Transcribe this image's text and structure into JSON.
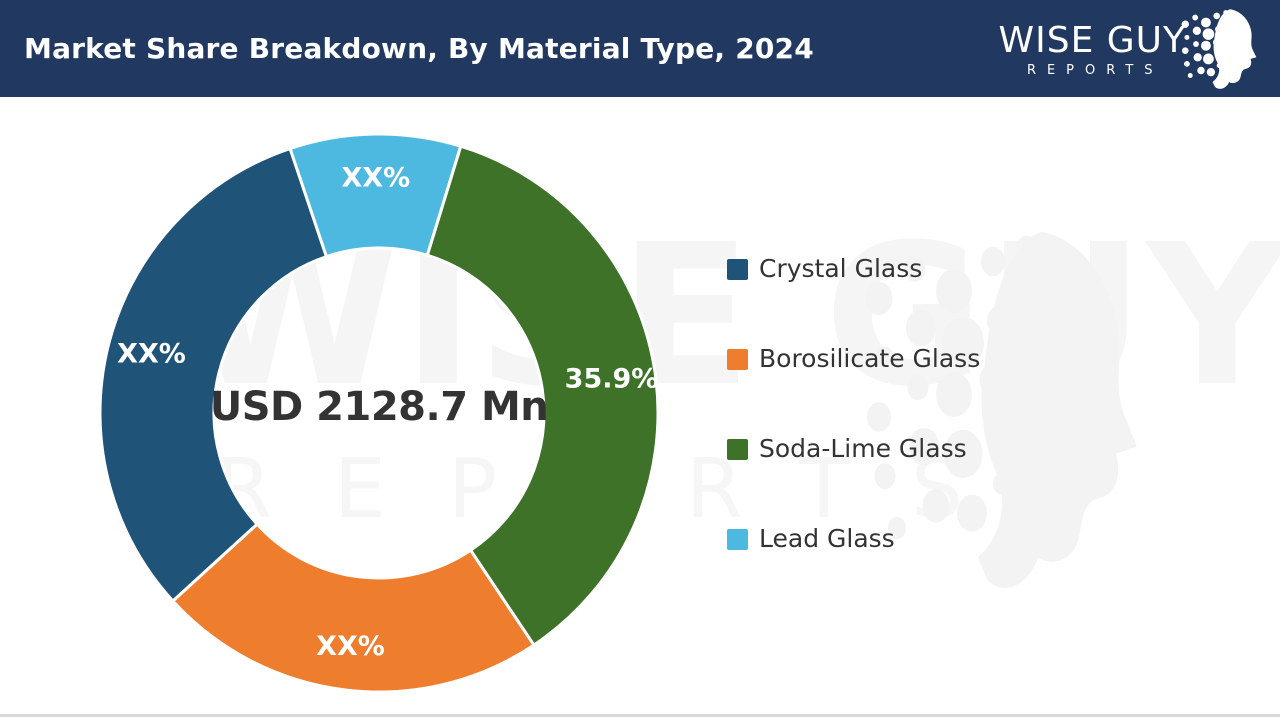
{
  "header": {
    "title": "Market Share Breakdown, By Material Type, 2024",
    "bg_color": "#213861",
    "logo": {
      "line1": "WISE GUY",
      "line2": "REPORTS"
    }
  },
  "watermark": {
    "line1": "WISE GUY",
    "line2": "REPORTS"
  },
  "chart_data": {
    "type": "pie",
    "subtype": "donut",
    "center_label": "USD 2128.7 Mn",
    "unit": "%",
    "start_angle_deg": -18.6,
    "outer_radius": 279,
    "inner_radius": 165,
    "label_radius": 235,
    "segments": [
      {
        "name": "Lead Glass",
        "value": 9.9,
        "display_label": "XX%",
        "color": "#4DB8E0"
      },
      {
        "name": "Soda-Lime Glass",
        "value": 35.9,
        "display_label": "35.9%",
        "color": "#3E7229"
      },
      {
        "name": "Borosilicate Glass",
        "value": 22.6,
        "display_label": "XX%",
        "color": "#EE7D2E"
      },
      {
        "name": "Crystal Glass",
        "value": 31.6,
        "display_label": "XX%",
        "color": "#1F5377"
      }
    ],
    "legend": [
      {
        "label": "Crystal Glass",
        "color": "#1F5377"
      },
      {
        "label": "Borosilicate Glass",
        "color": "#EE7D2E"
      },
      {
        "label": "Soda-Lime Glass",
        "color": "#3E7229"
      },
      {
        "label": "Lead Glass",
        "color": "#4DB8E0"
      }
    ],
    "legend_position": "right"
  }
}
